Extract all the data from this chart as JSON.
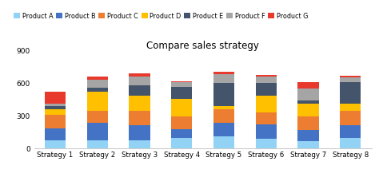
{
  "title": "Compare sales strategy",
  "categories": [
    "Strategy 1",
    "Strategy 2",
    "Strategy 3",
    "Strategy 4",
    "Strategy 5",
    "Strategy 6",
    "Strategy 7",
    "Strategy 8"
  ],
  "products": [
    "Product A",
    "Product B",
    "Product C",
    "Product D",
    "Product E",
    "Product F",
    "Product G"
  ],
  "colors": [
    "#92D3F5",
    "#4472C4",
    "#ED7D31",
    "#FFC000",
    "#44546A",
    "#A5A5A5",
    "#E8392D"
  ],
  "values": {
    "Product A": [
      75,
      75,
      75,
      95,
      110,
      90,
      65,
      95
    ],
    "Product B": [
      110,
      160,
      140,
      80,
      120,
      130,
      100,
      120
    ],
    "Product C": [
      120,
      110,
      130,
      120,
      130,
      110,
      130,
      130
    ],
    "Product D": [
      55,
      175,
      140,
      155,
      25,
      150,
      115,
      65
    ],
    "Product E": [
      30,
      35,
      90,
      110,
      215,
      120,
      30,
      195
    ],
    "Product F": [
      20,
      75,
      80,
      45,
      80,
      55,
      110,
      45
    ],
    "Product G": [
      110,
      25,
      30,
      10,
      20,
      20,
      55,
      15
    ]
  },
  "ylim": [
    0,
    900
  ],
  "yticks": [
    0,
    300,
    600,
    900
  ],
  "figsize": [
    4.74,
    2.28
  ],
  "dpi": 100
}
